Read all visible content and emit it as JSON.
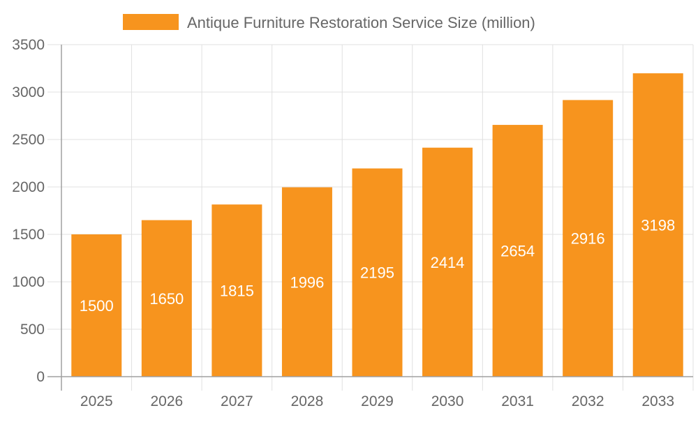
{
  "chart_data": {
    "type": "bar",
    "title": "",
    "xlabel": "",
    "ylabel": "",
    "categories": [
      "2025",
      "2026",
      "2027",
      "2028",
      "2029",
      "2030",
      "2031",
      "2032",
      "2033"
    ],
    "series": [
      {
        "name": "Antique Furniture Restoration Service Size (million)",
        "values": [
          1500,
          1650,
          1815,
          1996,
          2195,
          2414,
          2654,
          2916,
          3198
        ]
      }
    ],
    "ylim": [
      0,
      3500
    ],
    "yticks": [
      0,
      500,
      1000,
      1500,
      2000,
      2500,
      3000,
      3500
    ],
    "grid": true,
    "legend": "top-center",
    "data_labels": true,
    "colors": {
      "bar": "#F7941E",
      "label": "#FFFFFF",
      "grid": "#E0E0E0",
      "axis": "#A0A0A0",
      "text": "#666666"
    }
  }
}
